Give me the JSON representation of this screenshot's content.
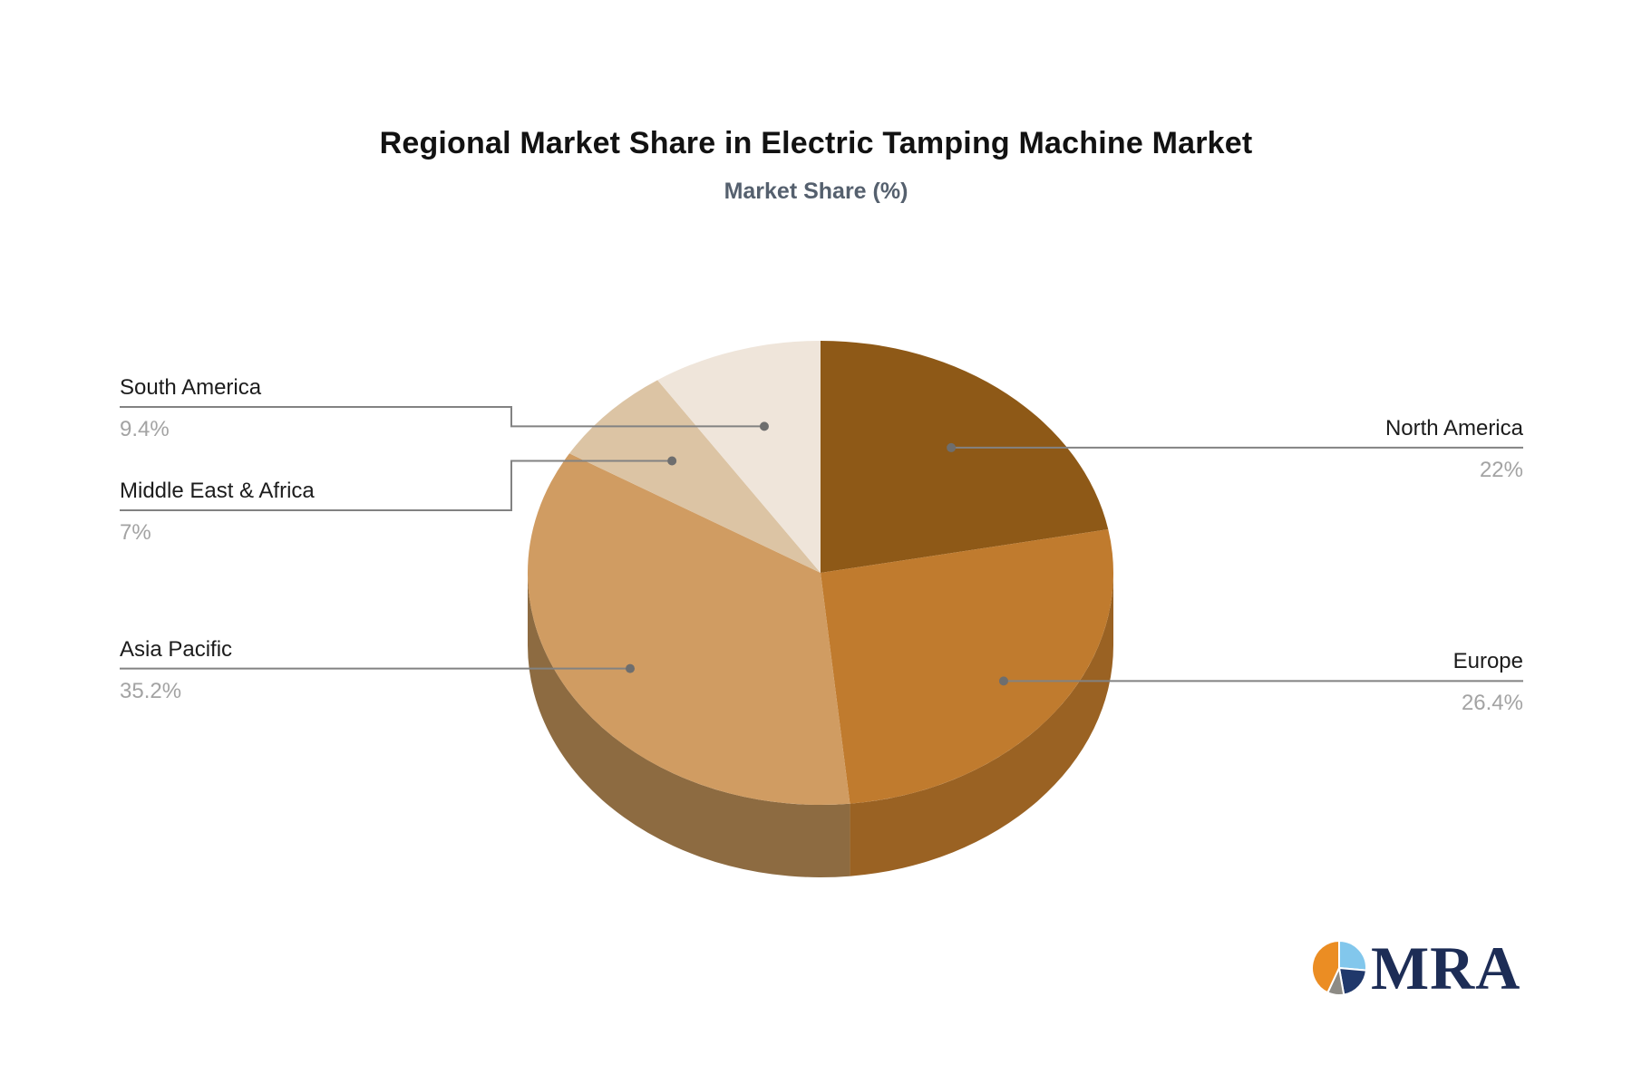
{
  "header": {
    "title": "Regional Market Share in Electric Tamping Machine Market",
    "subtitle": "Market Share (%)"
  },
  "chart_data": {
    "type": "pie",
    "style": "3d",
    "title": "Regional Market Share in Electric Tamping Machine Market",
    "subtitle": "Market Share (%)",
    "unit": "%",
    "direction": "clockwise",
    "start_angle_deg": 0,
    "legend_position": "callout-labels",
    "series": [
      {
        "label": "North America",
        "value": 22,
        "display": "22%",
        "color": "#8E5917",
        "side_color": null,
        "callout_side": "right"
      },
      {
        "label": "Europe",
        "value": 26.4,
        "display": "26.4%",
        "color": "#C07B2E",
        "side_color": "#9A6223",
        "callout_side": "right"
      },
      {
        "label": "Asia Pacific",
        "value": 35.2,
        "display": "35.2%",
        "color": "#D09C62",
        "side_color": "#8D6B41",
        "callout_side": "left"
      },
      {
        "label": "Middle East & Africa",
        "value": 7,
        "display": "7%",
        "color": "#DCC4A4",
        "side_color": null,
        "callout_side": "left"
      },
      {
        "label": "South America",
        "value": 9.4,
        "display": "9.4%",
        "color": "#EFE5DA",
        "side_color": null,
        "callout_side": "left"
      }
    ],
    "connector_color": "#828282",
    "dot_color": "#6e6e6e",
    "label_color": "#1c1c1c",
    "value_color": "#a3a3a3"
  },
  "logo": {
    "text": "MRA",
    "text_color": "#1d2d56",
    "mark_colors": {
      "orange": "#EB8D23",
      "light_blue": "#82C7EC",
      "navy": "#20386B",
      "gray": "#8D8B85"
    }
  }
}
